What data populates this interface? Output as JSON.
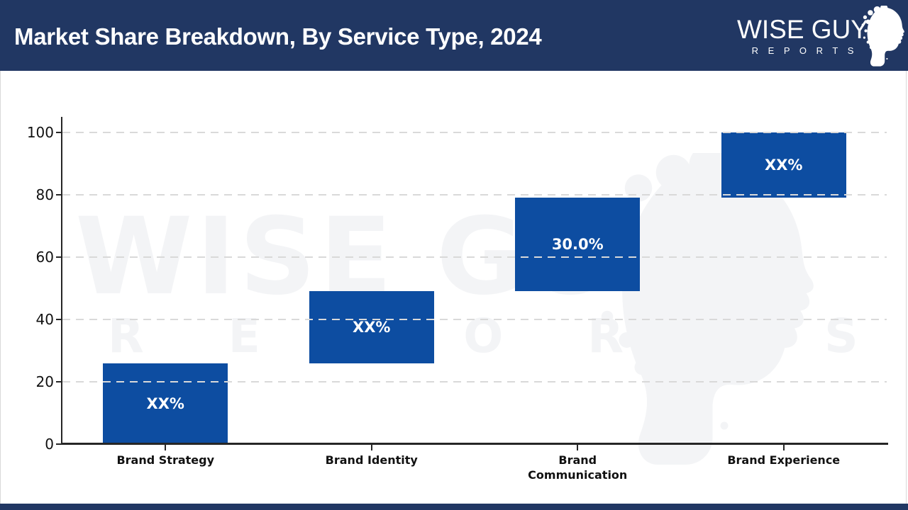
{
  "header": {
    "title": "Market Share Breakdown, By Service Type, 2024",
    "logo": {
      "line1": "WISE GUY",
      "line2": "R E P O R T S"
    }
  },
  "watermark": {
    "line1": "WISE GUY",
    "line2": "R E P O R T S"
  },
  "colors": {
    "header_bg": "#213763",
    "footer_bg": "#213763",
    "title_text": "#ffffff",
    "bar": "#0d4da1",
    "bar_label": "#ffffff",
    "axis": "#262626",
    "grid": "#d9d9d9",
    "tick_text": "#111111",
    "watermark": "#f3f4f6"
  },
  "chart_data": {
    "type": "bar",
    "subtype": "waterfall",
    "title": "Market Share Breakdown, By Service Type, 2024",
    "unit": "percent",
    "categories": [
      "Brand Strategy",
      "Brand Identity",
      "Brand Communication",
      "Brand Experience"
    ],
    "segments": [
      {
        "category": "Brand Strategy",
        "start": 0,
        "end": 26,
        "label": "XX%"
      },
      {
        "category": "Brand Identity",
        "start": 26,
        "end": 49,
        "label": "XX%"
      },
      {
        "category": "Brand Communication",
        "start": 49,
        "end": 79,
        "label": "30.0%",
        "value": 30.0
      },
      {
        "category": "Brand Experience",
        "start": 79,
        "end": 100,
        "label": "XX%"
      }
    ],
    "ylim": [
      0,
      100
    ],
    "yticks": [
      0,
      20,
      40,
      60,
      80,
      100
    ],
    "grid": "horizontal-dashed",
    "legend": "none"
  }
}
